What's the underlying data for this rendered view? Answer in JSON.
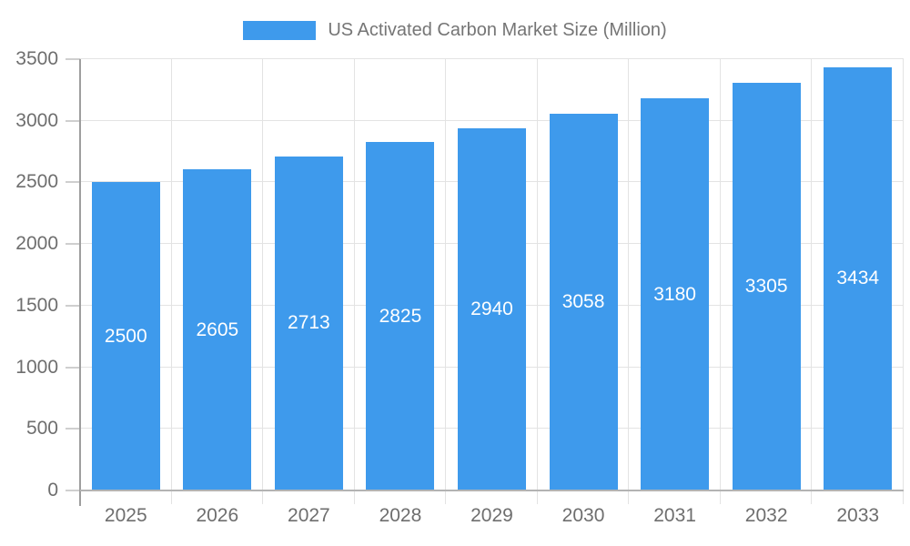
{
  "legend": {
    "label": "US Activated Carbon Market Size (Million)"
  },
  "chart_data": {
    "type": "bar",
    "title": "US Activated Carbon Market Size (Million)",
    "categories": [
      "2025",
      "2026",
      "2027",
      "2028",
      "2029",
      "2030",
      "2031",
      "2032",
      "2033"
    ],
    "values": [
      2500,
      2605,
      2713,
      2825,
      2940,
      3058,
      3180,
      3305,
      3434
    ],
    "xlabel": "",
    "ylabel": "",
    "ylim": [
      0,
      3500
    ],
    "yticks": [
      0,
      500,
      1000,
      1500,
      2000,
      2500,
      3000,
      3500
    ],
    "grid": true,
    "legend_position": "top",
    "bar_color": "#3E9AEC",
    "bar_label_color": "#ffffff",
    "axis_text_color": "#6e6e6e",
    "legend_text_color": "#757575",
    "gridline_color": "#e3e3e3"
  }
}
